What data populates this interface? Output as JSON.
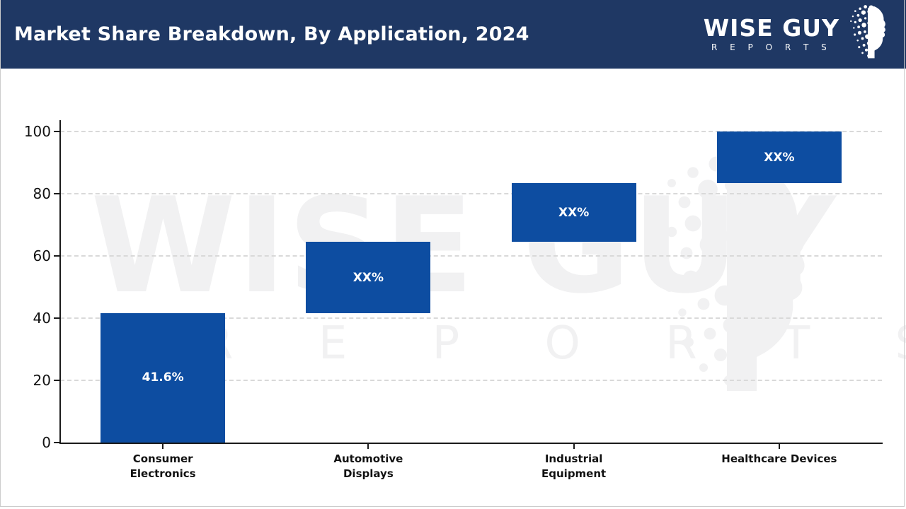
{
  "header": {
    "title": "Market Share Breakdown, By Application, 2024",
    "logo": {
      "primary": "WISE GUY",
      "secondary": "R E P O R T S"
    }
  },
  "watermark": {
    "primary": "WISE GUY",
    "secondary": "R E P O R T S"
  },
  "colors": {
    "header_bg": "#1f3864",
    "bar": "#0d4da1",
    "bar_label": "#ffffff",
    "axis": "#1a1a1a",
    "gridline": "#d9d9d9",
    "tick_label": "#111111",
    "watermark": "#f1f1f2"
  },
  "chart_data": {
    "type": "bar",
    "subtype": "waterfall",
    "title": "Market Share Breakdown, By Application, 2024",
    "categories": [
      "Consumer Electronics",
      "Automotive Displays",
      "Industrial Equipment",
      "Healthcare Devices"
    ],
    "category_label_lines": [
      [
        "Consumer",
        "Electronics"
      ],
      [
        "Automotive",
        "Displays"
      ],
      [
        "Industrial",
        "Equipment"
      ],
      [
        "Healthcare Devices"
      ]
    ],
    "values": [
      41.6,
      22.9,
      18.8,
      16.7
    ],
    "cumulative_start": [
      0,
      41.6,
      64.5,
      83.3
    ],
    "cumulative_end": [
      41.6,
      64.5,
      83.3,
      100
    ],
    "bar_labels": [
      "41.6%",
      "XX%",
      "XX%",
      "XX%"
    ],
    "units": "percent market share",
    "xlabel": "",
    "ylabel": "",
    "yticks": [
      0,
      20,
      40,
      60,
      80,
      100
    ],
    "ylim": [
      0,
      100
    ],
    "grid": "horizontal dashed",
    "legend": "none"
  }
}
